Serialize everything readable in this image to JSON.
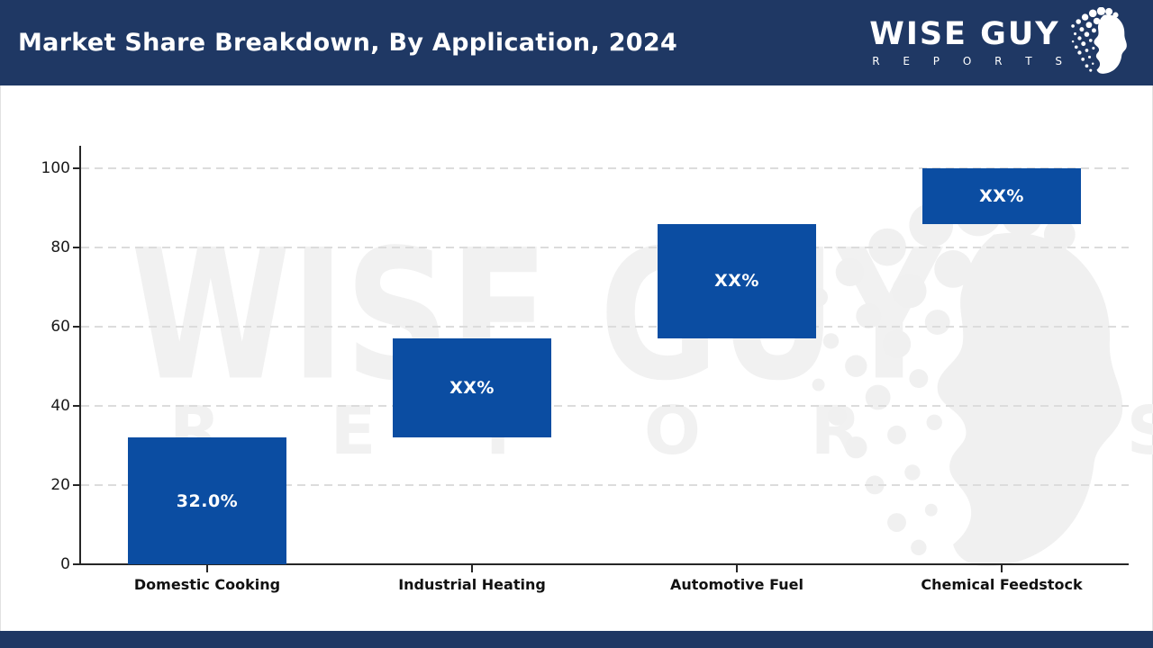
{
  "header": {
    "title": "Market Share Breakdown, By Application, 2024",
    "bg_color": "#1f3864",
    "logo": {
      "name": "WISE GUY",
      "sub": "R E P O R T S"
    }
  },
  "watermark": {
    "line1": "WISE GUY",
    "line2": "R E P O R T S"
  },
  "footer": {
    "bg_color": "#1f3864"
  },
  "chart_data": {
    "type": "bar",
    "variant": "floating-segment waterfall of market share percentages",
    "title": "Market Share Breakdown, By Application, 2024",
    "categories": [
      "Domestic Cooking",
      "Industrial Heating",
      "Automotive Fuel",
      "Chemical Feedstock"
    ],
    "series": [
      {
        "name": "Market share",
        "segments": [
          {
            "category": "Domestic Cooking",
            "from": 0,
            "to": 32,
            "label": "32.0%"
          },
          {
            "category": "Industrial Heating",
            "from": 32,
            "to": 57,
            "label": "XX%"
          },
          {
            "category": "Automotive Fuel",
            "from": 57,
            "to": 86,
            "label": "XX%"
          },
          {
            "category": "Chemical Feedstock",
            "from": 86,
            "to": 100,
            "label": "XX%"
          }
        ]
      }
    ],
    "yticks": [
      0,
      20,
      40,
      60,
      80,
      100
    ],
    "ylim": [
      0,
      109
    ],
    "xlabel": "",
    "ylabel": "",
    "legend": "none",
    "grid": "horizontal dashed",
    "bar_color": "#0b4da2",
    "bar_label_color": "#ffffff",
    "axis_color": "#262626",
    "grid_color": "#dcdcdc"
  }
}
